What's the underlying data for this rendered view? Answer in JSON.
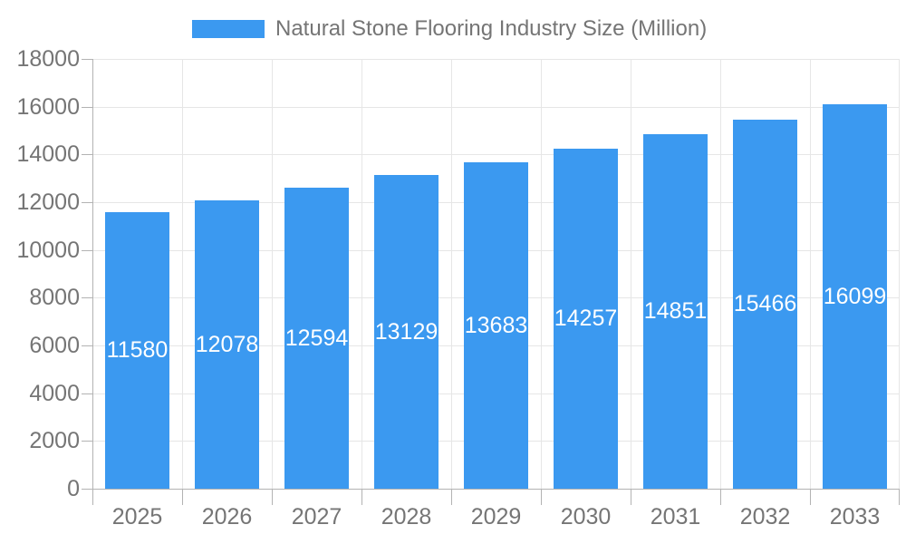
{
  "legend": {
    "label": "Natural Stone Flooring Industry Size (Million)"
  },
  "chart_data": {
    "type": "bar",
    "title": "Natural Stone Flooring Industry Size (Million)",
    "categories": [
      "2025",
      "2026",
      "2027",
      "2028",
      "2029",
      "2030",
      "2031",
      "2032",
      "2033"
    ],
    "values": [
      11580,
      12078,
      12594,
      13129,
      13683,
      14257,
      14851,
      15466,
      16099
    ],
    "xlabel": "",
    "ylabel": "",
    "ylim": [
      0,
      18000
    ],
    "ytick_step": 2000,
    "ytick_labels": [
      "0",
      "2000",
      "4000",
      "6000",
      "8000",
      "10000",
      "12000",
      "14000",
      "16000",
      "18000"
    ],
    "grid": true,
    "legend_position": "top",
    "value_labels": "inside-center",
    "colors": {
      "bar": "#3B99F0",
      "grid": "#E6E6E6",
      "axis": "#B3B3B3",
      "tick_text": "#757575",
      "value_text": "#FFFFFF"
    }
  }
}
